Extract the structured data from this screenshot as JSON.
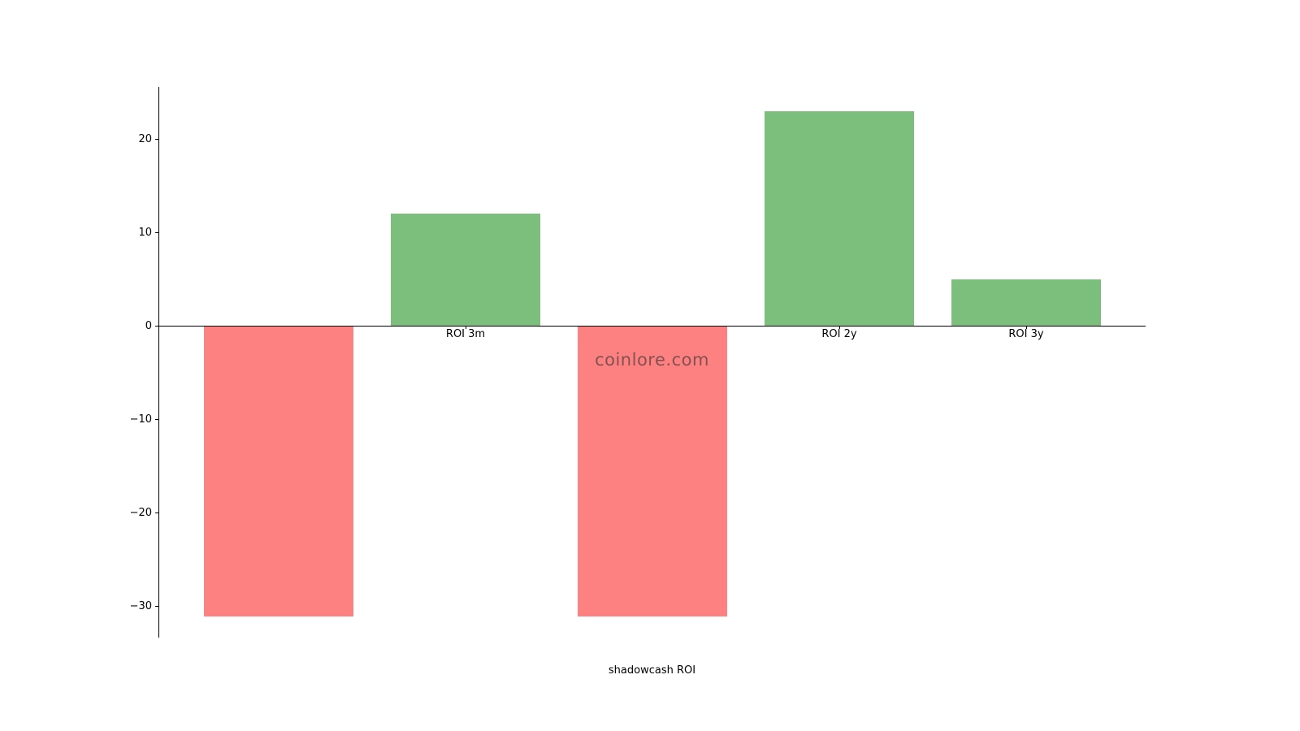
{
  "watermark_text": "coinlore.com",
  "chart_data": {
    "type": "bar",
    "title": "",
    "xlabel": "shadowcash ROI",
    "ylabel": "",
    "categories": [
      "",
      "ROI 3m",
      "",
      "ROI 2y",
      "ROI 3y"
    ],
    "values": [
      -31,
      12,
      -31,
      23,
      5
    ],
    "positive_color": "#7cbf7d",
    "negative_color": "#fd8181",
    "axis_color": "#000000",
    "y_ticks": [
      20,
      10,
      0,
      -10,
      -20,
      -30
    ],
    "y_tick_labels": [
      "20",
      "10",
      "0",
      "−10",
      "−20",
      "−30"
    ],
    "ylim": [
      -33.4,
      25.6
    ],
    "grid": false,
    "legend_position": "none"
  }
}
